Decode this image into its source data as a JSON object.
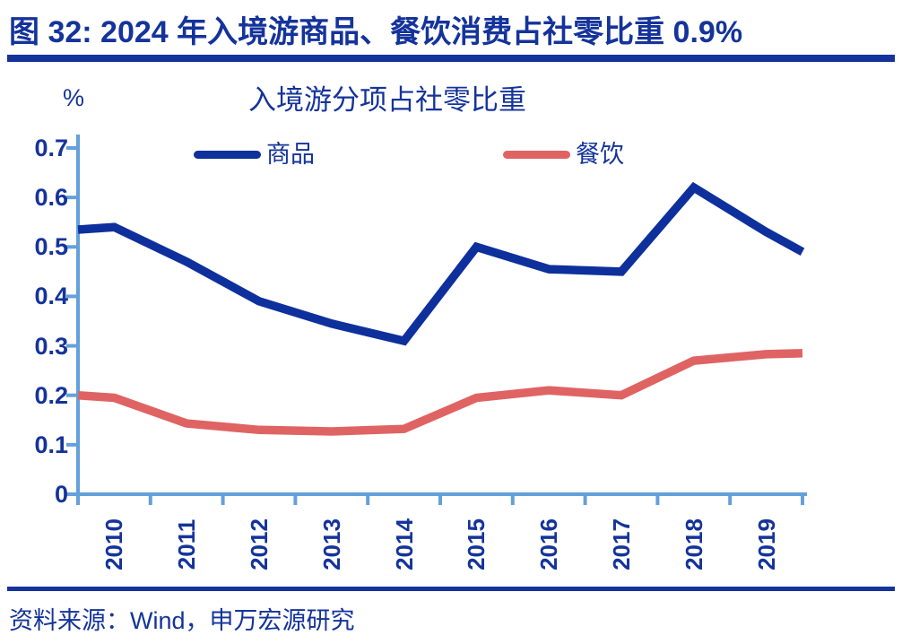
{
  "header": {
    "title": "图 32: 2024 年入境游商品、餐饮消费占社零比重 0.9%"
  },
  "theme": {
    "navy": "#14339B",
    "axis_color": "#63A0DB",
    "background": "#FFFFFF"
  },
  "chart_data": {
    "type": "line",
    "title": "入境游分项占社零比重",
    "unit": "%",
    "xlabel": "",
    "ylabel": "%",
    "ylim": [
      0,
      0.7
    ],
    "yticks": [
      0,
      0.1,
      0.2,
      0.3,
      0.4,
      0.5,
      0.6,
      0.7
    ],
    "ytick_labels": [
      "0",
      "0.1",
      "0.2",
      "0.3",
      "0.4",
      "0.5",
      "0.6",
      "0.7"
    ],
    "categories": [
      "2010",
      "2011",
      "2012",
      "2013",
      "2014",
      "2015",
      "2016",
      "2017",
      "2018",
      "2019"
    ],
    "x_positions": [
      -0.5,
      0,
      1,
      2,
      3,
      4,
      5,
      6,
      7,
      8,
      9,
      9.5
    ],
    "edge_points_note": "first and last points sit at the unlabeled left/right plot edges",
    "grid": false,
    "legend_position": "top-inside",
    "series": [
      {
        "name": "商品",
        "color": "#0E309C",
        "values": [
          0.535,
          0.54,
          0.47,
          0.39,
          0.345,
          0.31,
          0.5,
          0.455,
          0.45,
          0.62,
          0.53,
          0.49
        ]
      },
      {
        "name": "餐饮",
        "color": "#E06363",
        "values": [
          0.2,
          0.195,
          0.143,
          0.13,
          0.127,
          0.132,
          0.195,
          0.21,
          0.2,
          0.27,
          0.283,
          0.285
        ]
      }
    ]
  },
  "footer": {
    "source": "资料来源：Wind，申万宏源研究"
  }
}
